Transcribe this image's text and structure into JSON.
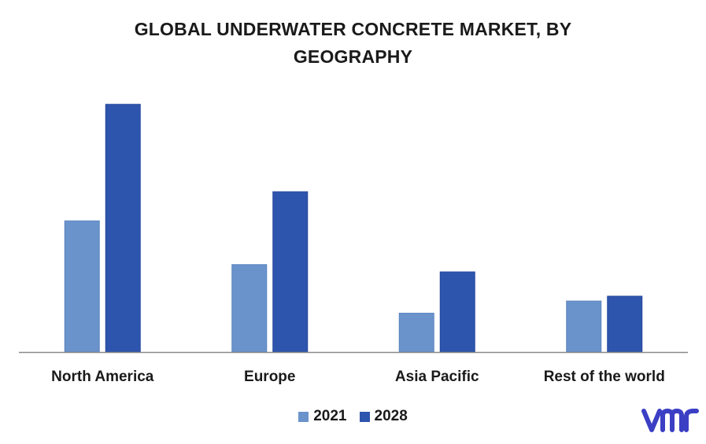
{
  "title_line1": "GLOBAL UNDERWATER CONCRETE MARKET, BY",
  "title_line2": "GEOGRAPHY",
  "colors": {
    "series_2021": "#6a93cc",
    "series_2028": "#2e55ad",
    "axis": "#8a8a8a",
    "logo": "#3b3fc4"
  },
  "logo_text": "vmr",
  "chart_data": {
    "type": "bar",
    "title": "GLOBAL UNDERWATER CONCRETE MARKET, BY GEOGRAPHY",
    "xlabel": "",
    "ylabel": "",
    "categories": [
      "North America",
      "Europe",
      "Asia Pacific",
      "Rest of the world"
    ],
    "series": [
      {
        "name": "2021",
        "values": [
          5.4,
          3.6,
          1.6,
          2.1
        ]
      },
      {
        "name": "2028",
        "values": [
          10.2,
          6.6,
          3.3,
          2.3
        ]
      }
    ],
    "ylim": [
      0,
      11
    ],
    "grid": false,
    "legend": "bottom-center",
    "axis_visible": false
  }
}
